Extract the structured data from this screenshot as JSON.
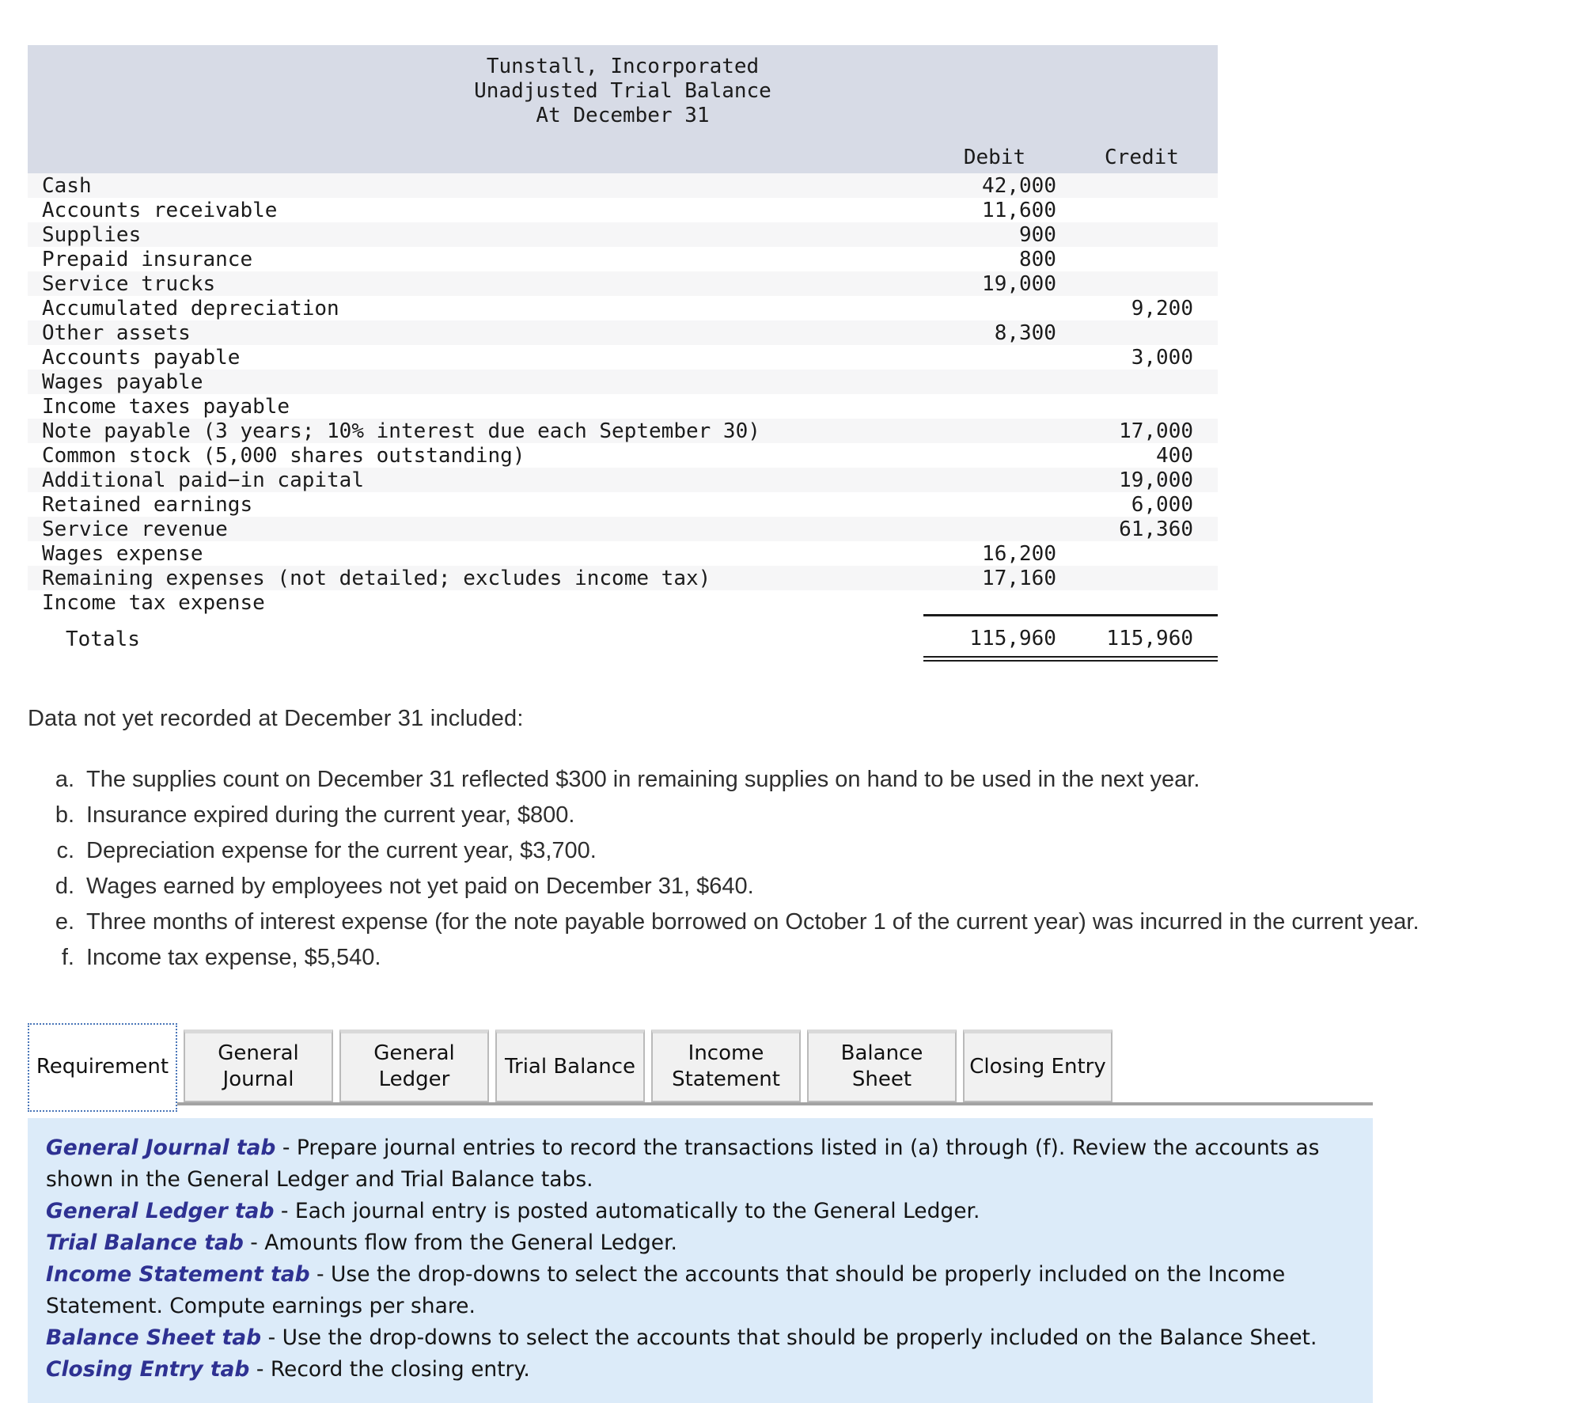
{
  "trial_balance": {
    "title_lines": [
      "Tunstall, Incorporated",
      "Unadjusted Trial Balance",
      "At December 31"
    ],
    "columns": {
      "debit": "Debit",
      "credit": "Credit"
    },
    "rows": [
      {
        "account": "Cash",
        "debit": "42,000",
        "credit": ""
      },
      {
        "account": "Accounts receivable",
        "debit": "11,600",
        "credit": ""
      },
      {
        "account": "Supplies",
        "debit": "900",
        "credit": ""
      },
      {
        "account": "Prepaid insurance",
        "debit": "800",
        "credit": ""
      },
      {
        "account": "Service trucks",
        "debit": "19,000",
        "credit": ""
      },
      {
        "account": "Accumulated depreciation",
        "debit": "",
        "credit": "9,200"
      },
      {
        "account": "Other assets",
        "debit": "8,300",
        "credit": ""
      },
      {
        "account": "Accounts payable",
        "debit": "",
        "credit": "3,000"
      },
      {
        "account": "Wages payable",
        "debit": "",
        "credit": ""
      },
      {
        "account": "Income taxes payable",
        "debit": "",
        "credit": ""
      },
      {
        "account": "Note payable (3 years; 10% interest due each September 30)",
        "debit": "",
        "credit": "17,000"
      },
      {
        "account": "Common stock (5,000 shares outstanding)",
        "debit": "",
        "credit": "400"
      },
      {
        "account": "Additional paid−in capital",
        "debit": "",
        "credit": "19,000"
      },
      {
        "account": "Retained earnings",
        "debit": "",
        "credit": "6,000"
      },
      {
        "account": "Service revenue",
        "debit": "",
        "credit": "61,360"
      },
      {
        "account": "Wages expense",
        "debit": "16,200",
        "credit": ""
      },
      {
        "account": "Remaining expenses (not detailed; excludes income tax)",
        "debit": "17,160",
        "credit": ""
      },
      {
        "account": "Income tax expense",
        "debit": "",
        "credit": ""
      }
    ],
    "totals": {
      "label": "Totals",
      "debit": "115,960",
      "credit": "115,960"
    }
  },
  "notes": {
    "heading": "Data not yet recorded at December 31 included:",
    "items": [
      {
        "letter": "a.",
        "text": "The supplies count on December 31 reflected $300 in remaining supplies on hand to be used in the next year."
      },
      {
        "letter": "b.",
        "text": "Insurance expired during the current year, $800."
      },
      {
        "letter": "c.",
        "text": "Depreciation expense for the current year, $3,700."
      },
      {
        "letter": "d.",
        "text": "Wages earned by employees not yet paid on December 31, $640."
      },
      {
        "letter": "e.",
        "text": "Three months of interest expense (for the note payable borrowed on October 1 of the current year) was incurred in the current year."
      },
      {
        "letter": "f.",
        "text": "Income tax expense, $5,540."
      }
    ]
  },
  "tabs": [
    {
      "label": "Requirement",
      "active": true
    },
    {
      "label": "General\nJournal",
      "active": false
    },
    {
      "label": "General\nLedger",
      "active": false
    },
    {
      "label": "Trial Balance",
      "active": false
    },
    {
      "label": "Income\nStatement",
      "active": false
    },
    {
      "label": "Balance Sheet",
      "active": false
    },
    {
      "label": "Closing Entry",
      "active": false
    }
  ],
  "tab_descriptions": [
    {
      "name": "General Journal tab",
      "text": "- Prepare journal entries to record the transactions listed in (a) through (f). Review the accounts as shown in the General Ledger and Trial Balance tabs."
    },
    {
      "name": "General Ledger tab",
      "text": "- Each journal entry is posted automatically to the General Ledger."
    },
    {
      "name": "Trial Balance tab",
      "text": "- Amounts flow from the General Ledger."
    },
    {
      "name": "Income Statement tab",
      "text": "- Use the drop-downs to select the accounts that should be properly included on the Income Statement. Compute earnings per share."
    },
    {
      "name": "Balance Sheet tab",
      "text": "- Use the drop-downs to select the accounts that should be properly included on the Balance Sheet."
    },
    {
      "name": "Closing Entry tab",
      "text": "- Record the closing entry."
    }
  ],
  "colors": {
    "table_header_bg": "#d7dbe6",
    "row_stripe": "#f6f6f7",
    "info_box_bg": "#dcebf9",
    "tab_name_navy": "#2e3192",
    "active_tab_outline": "#4a76b8",
    "inactive_tab_bg": "#f1f1f1",
    "tab_baseline_gray": "#a3a3a3"
  }
}
